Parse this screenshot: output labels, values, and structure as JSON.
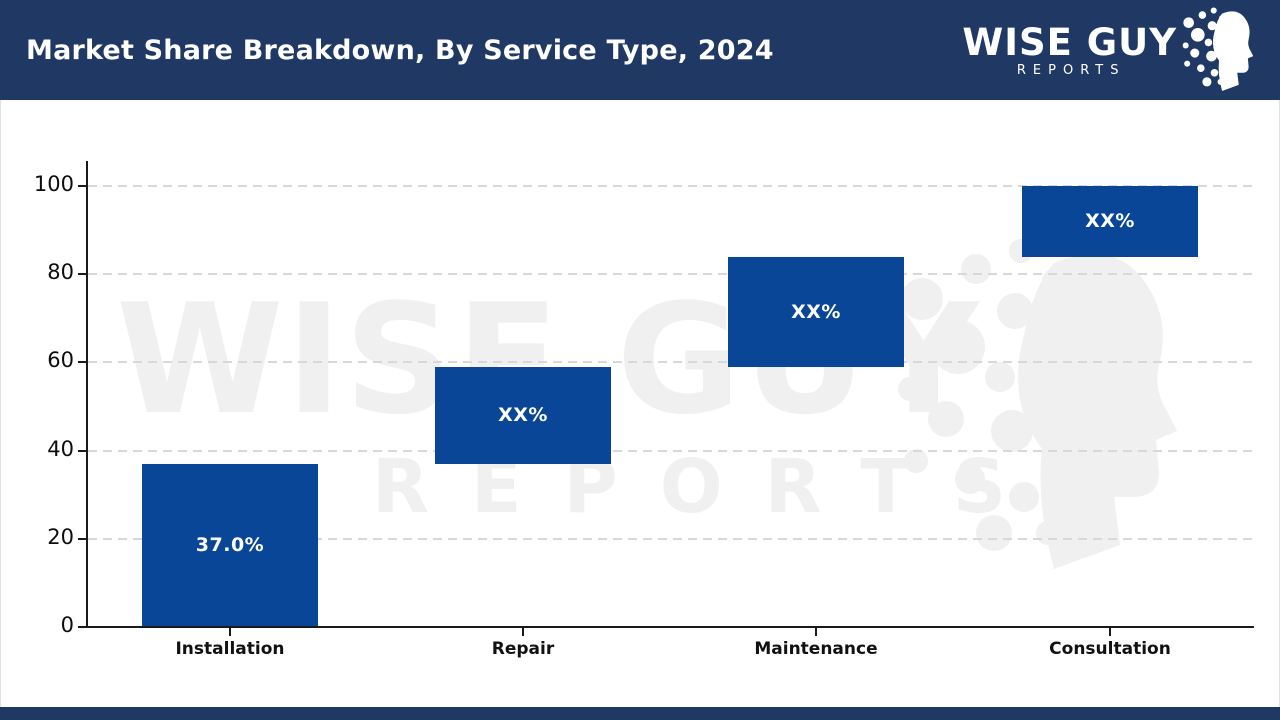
{
  "header": {
    "title": "Market Share Breakdown, By Service Type, 2024",
    "bg_color": "#1f3864",
    "logo": {
      "wordmark": "WISE GUY",
      "subtext": "REPORTS"
    }
  },
  "watermark": {
    "line1": "WISE GUY",
    "line2": "REPORTS"
  },
  "chart_data": {
    "type": "bar",
    "subtype": "floating-segment (waterfall style)",
    "title": "Market Share Breakdown, By Service Type, 2024",
    "categories": [
      "Installation",
      "Repair",
      "Maintenance",
      "Consultation"
    ],
    "series": [
      {
        "name": "Market share",
        "segments": [
          {
            "category": "Installation",
            "start": 0,
            "end": 37,
            "label": "37.0%"
          },
          {
            "category": "Repair",
            "start": 37,
            "end": 59,
            "label": "XX%"
          },
          {
            "category": "Maintenance",
            "start": 59,
            "end": 84,
            "label": "XX%"
          },
          {
            "category": "Consultation",
            "start": 84,
            "end": 100,
            "label": "XX%"
          }
        ]
      }
    ],
    "xlabel": "",
    "ylabel": "",
    "ylim": [
      0,
      100
    ],
    "y_ticks": [
      0,
      20,
      40,
      60,
      80,
      100
    ],
    "grid": "horizontal dashed, light gray",
    "legend": "none",
    "bar_color": "#0a4697",
    "bar_label_color": "#ffffff"
  },
  "colors": {
    "header_bg": "#1f3864",
    "footer_bg": "#1f3864",
    "grid": "#d8d8d8",
    "axis": "#1a1a1a",
    "watermark": "#f0f0f1"
  }
}
